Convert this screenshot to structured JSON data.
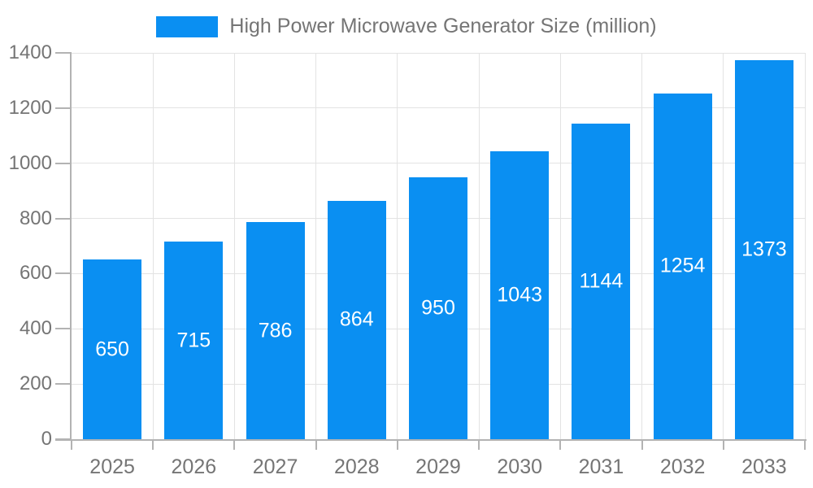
{
  "legend": {
    "label": "High Power Microwave Generator Size (million)"
  },
  "colors": {
    "bar": "#0a8ff2",
    "axis": "#b3b3b3",
    "grid": "#e3e3e3",
    "tick": "#b3b3b3",
    "text": "#757575",
    "value_label": "#ffffff",
    "background": "#ffffff"
  },
  "chart_data": {
    "type": "bar",
    "title": "High Power Microwave Generator Size (million)",
    "categories": [
      "2025",
      "2026",
      "2027",
      "2028",
      "2029",
      "2030",
      "2031",
      "2032",
      "2033"
    ],
    "values": [
      650,
      715,
      786,
      864,
      950,
      1043,
      1144,
      1254,
      1373
    ],
    "xlabel": "",
    "ylabel": "",
    "ylim": [
      0,
      1400
    ],
    "yticks": [
      0,
      200,
      400,
      600,
      800,
      1000,
      1200,
      1400
    ],
    "grid": true,
    "legend_position": "top-center",
    "value_labels": "inside-center",
    "bar_color": "#0a8ff2"
  }
}
